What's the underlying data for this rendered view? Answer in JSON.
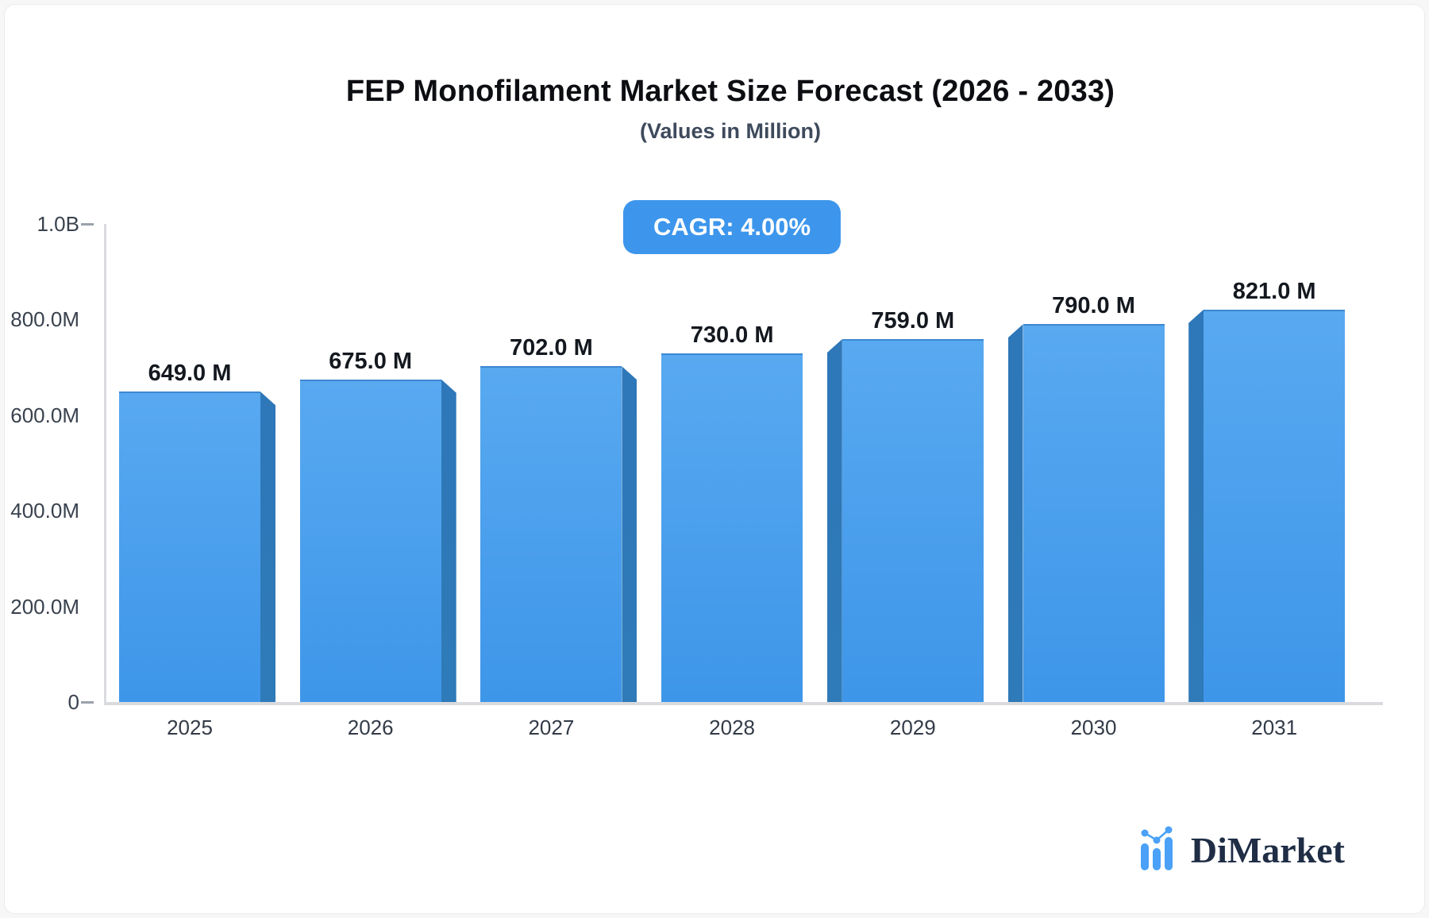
{
  "page": {
    "background": "#f7f7f8",
    "card_background": "#ffffff"
  },
  "chart_data": {
    "type": "bar",
    "title": "FEP Monofilament Market Size Forecast (2026 - 2033)",
    "subtitle": "(Values in Million)",
    "cagr_label": "CAGR: 4.00%",
    "unit": "Million",
    "categories": [
      "2025",
      "2026",
      "2027",
      "2028",
      "2029",
      "2030",
      "2031"
    ],
    "values": [
      649,
      675,
      702,
      730,
      759,
      790,
      821
    ],
    "value_labels": [
      "649.0 M",
      "675.0 M",
      "702.0 M",
      "730.0 M",
      "759.0 M",
      "790.0 M",
      "821.0 M"
    ],
    "ylim": [
      0,
      1000
    ],
    "y_ticks": [
      {
        "label": "1.0B",
        "value": 1000,
        "tick": true
      },
      {
        "label": "800.0M",
        "value": 800,
        "tick": false
      },
      {
        "label": "600.0M",
        "value": 600,
        "tick": false
      },
      {
        "label": "400.0M",
        "value": 400,
        "tick": false
      },
      {
        "label": "200.0M",
        "value": 200,
        "tick": false
      },
      {
        "label": "0",
        "value": 0,
        "tick": true
      }
    ],
    "grid": false,
    "legend": false,
    "style": "3d-perspective-bars"
  },
  "colors": {
    "bar_face_top": "#58a9f0",
    "bar_face_bottom": "#3e96e9",
    "bar_side": "#2e77b9",
    "bar_top_edge": "#3d87d1",
    "badge_background": "#3d96ec",
    "axis_line": "#d9dbde",
    "tick": "#9aa2ac",
    "title_text": "#0c0e12",
    "subtitle_text": "#3e4a5c",
    "axis_text": "#39424e",
    "brand_text": "#1f2d45",
    "brand_icon_blue": "#4aa1f7"
  },
  "footer": {
    "brand": "DiMarket"
  }
}
